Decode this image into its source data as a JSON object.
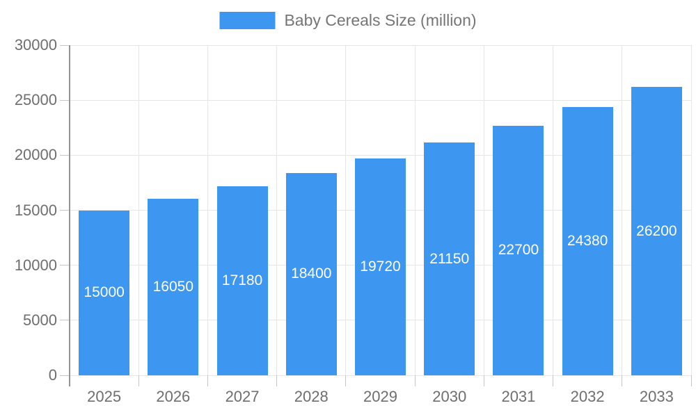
{
  "chart_data": {
    "type": "bar",
    "title": "Baby Cereals Size (million)",
    "legend": {
      "label": "Baby Cereals Size (million)",
      "position": "top"
    },
    "categories": [
      "2025",
      "2026",
      "2027",
      "2028",
      "2029",
      "2030",
      "2031",
      "2032",
      "2033"
    ],
    "values": [
      15000,
      16050,
      17180,
      18400,
      19720,
      21150,
      22700,
      24380,
      26200
    ],
    "xlabel": "",
    "ylabel": "",
    "ylim": [
      0,
      30000
    ],
    "yticks": [
      0,
      5000,
      10000,
      15000,
      20000,
      25000,
      30000
    ],
    "grid": "on",
    "bar_value_labels": true,
    "colors": {
      "bar": "#3D96F0",
      "value_label": "#ffffff",
      "axis_line": "#949494",
      "gridline": "#e6e6e6",
      "tick": "#c6c6c6",
      "axis_label": "#6e6e6e",
      "legend_text": "#757575",
      "background": "#ffffff"
    }
  }
}
